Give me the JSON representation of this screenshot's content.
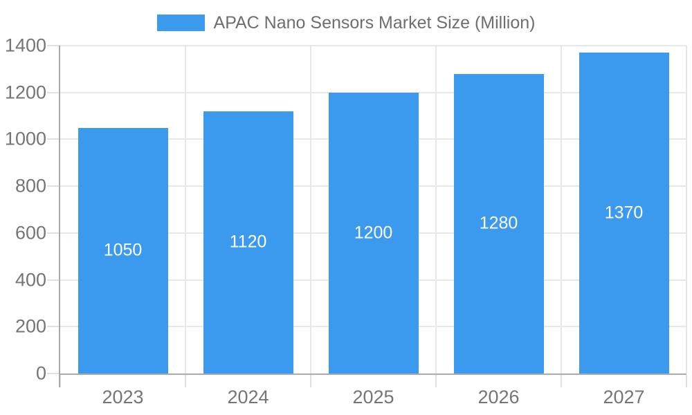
{
  "chart_data": {
    "type": "bar",
    "title": "",
    "categories": [
      "2023",
      "2024",
      "2025",
      "2026",
      "2027"
    ],
    "series": [
      {
        "name": "APAC Nano Sensors Market Size (Million)",
        "values": [
          1050,
          1120,
          1200,
          1280,
          1370
        ]
      }
    ],
    "data_labels": [
      "1050",
      "1120",
      "1200",
      "1280",
      "1370"
    ],
    "xlabel": "",
    "ylabel": "",
    "ylim": [
      0,
      1400
    ],
    "yticks": [
      0,
      200,
      400,
      600,
      800,
      1000,
      1200,
      1400
    ],
    "grid": true,
    "legend_position": "top-center",
    "bar_label_position": "inside-middle",
    "colors": {
      "bar": "#3b99ee",
      "bar_label": "#ffffff",
      "axis_label": "#757575",
      "legend_text": "#6e6e6e",
      "gridline": "#e7e7e7",
      "tick": "#e0e0e0",
      "axis_line": "#aaaaaa",
      "background": "#ffffff"
    }
  }
}
